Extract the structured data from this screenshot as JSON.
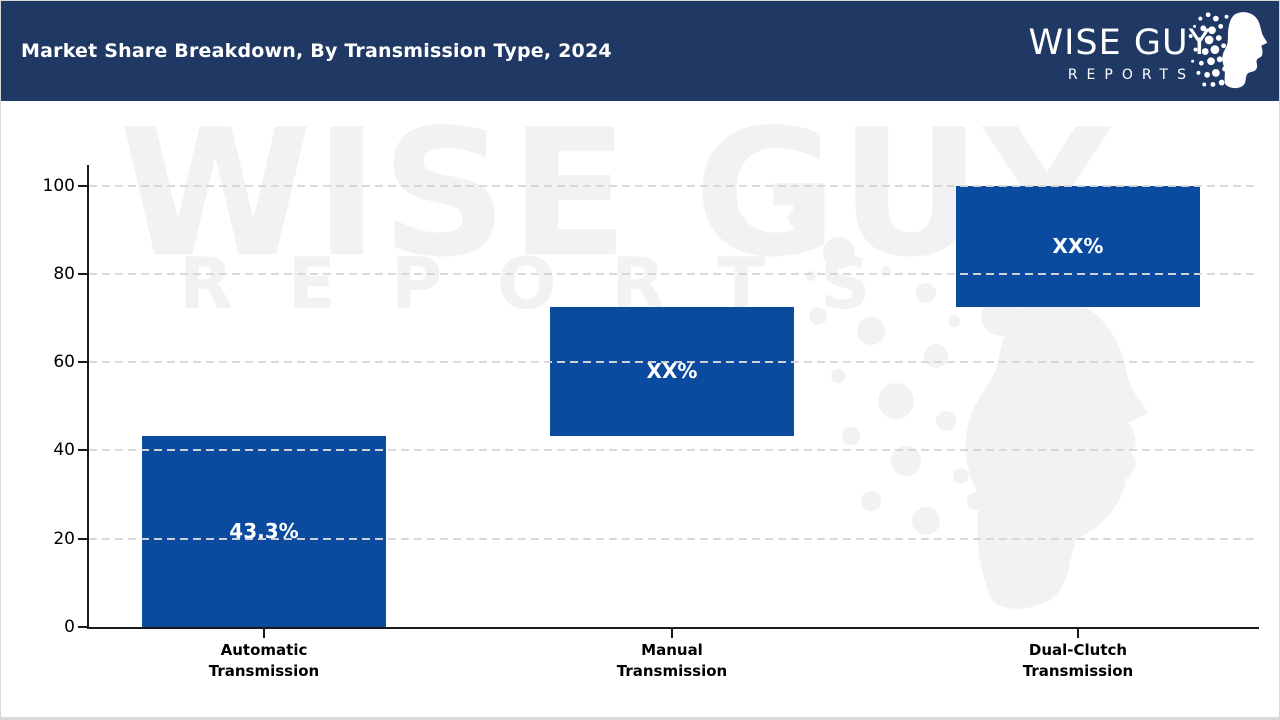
{
  "header": {
    "title": "Market Share Breakdown, By Transmission Type, 2024",
    "background_color": "#1f3864",
    "logo": {
      "line1": "WISE GUY",
      "line2": "REPORTS",
      "face_icon": "head-profile-dots"
    }
  },
  "watermark": {
    "line1": "WISE GUY",
    "line2": "REPORTS"
  },
  "chart_data": {
    "type": "bar",
    "subtype": "waterfall-stacked-segments",
    "title": "Market Share Breakdown, By Transmission Type, 2024",
    "categories": [
      "Automatic Transmission",
      "Manual Transmission",
      "Dual-Clutch Transmission"
    ],
    "segments": [
      {
        "category": "Automatic Transmission",
        "start": 0,
        "end": 43.3,
        "label": "43.3%"
      },
      {
        "category": "Manual Transmission",
        "start": 43.3,
        "end": 72.5,
        "label": "XX%"
      },
      {
        "category": "Dual-Clutch Transmission",
        "start": 72.5,
        "end": 100,
        "label": "XX%"
      }
    ],
    "xlabel": "",
    "ylabel": "",
    "yticks": [
      0,
      20,
      40,
      60,
      80,
      100
    ],
    "ylim": [
      0,
      105
    ],
    "grid": "horizontal-dashed",
    "gridline_color": "#d7d7d7",
    "legend": "none",
    "bar_color": "#0a4a9f",
    "bar_label_color": "#ffffff",
    "axis_color": "#1a1a1a"
  }
}
